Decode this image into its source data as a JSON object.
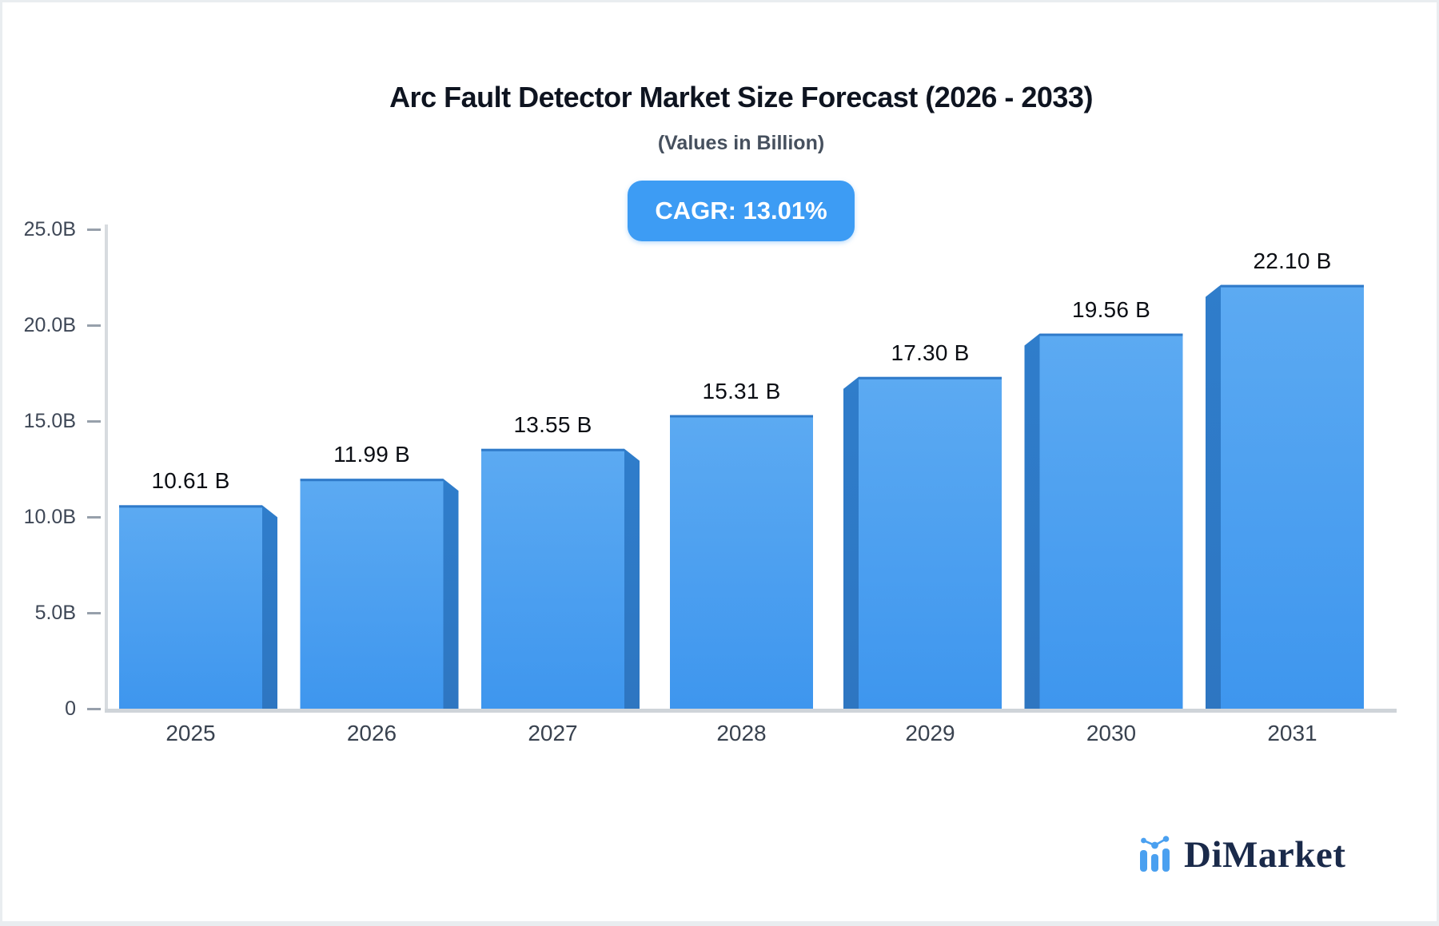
{
  "title": "Arc Fault Detector Market Size Forecast (2026 - 2033)",
  "subtitle": "(Values in Billion)",
  "badge": {
    "label": "CAGR: 13.01%"
  },
  "logo": {
    "text": "DiMarket"
  },
  "colors": {
    "accent_blue": "#3d9cf4",
    "bar_front_top": "#5caaf2",
    "bar_front_bottom": "#3e96ee",
    "bar_side": "#2e76c1",
    "bar_top_border": "#2f7ac9",
    "axis_line": "#cfd4d9",
    "tick": "#97a0ab",
    "logo_navy": "#1a2a4a",
    "logo_blue": "#4aa0f0"
  },
  "chart_data": {
    "type": "bar",
    "title": "Arc Fault Detector Market Size Forecast (2026 - 2033)",
    "subtitle": "(Values in Billion)",
    "categories": [
      "2025",
      "2026",
      "2027",
      "2028",
      "2029",
      "2030",
      "2031"
    ],
    "values": [
      10.61,
      11.99,
      13.55,
      15.31,
      17.3,
      19.56,
      22.1
    ],
    "value_labels": [
      "10.61 B",
      "11.99 B",
      "13.55 B",
      "15.31 B",
      "17.30 B",
      "19.56 B",
      "22.10 B"
    ],
    "unit": "Billion",
    "cagr_annotation": "CAGR: 13.01%",
    "xlabel": "",
    "ylabel": "",
    "ylim": [
      0,
      25
    ],
    "grid": false,
    "legend": false,
    "y_ticks": [
      {
        "value": 0,
        "label": "0"
      },
      {
        "value": 5,
        "label": "5.0B"
      },
      {
        "value": 10,
        "label": "10.0B"
      },
      {
        "value": 15,
        "label": "15.0B"
      },
      {
        "value": 20,
        "label": "20.0B"
      },
      {
        "value": 25,
        "label": "25.0B"
      }
    ],
    "bar_effect": "3d-extruded"
  }
}
